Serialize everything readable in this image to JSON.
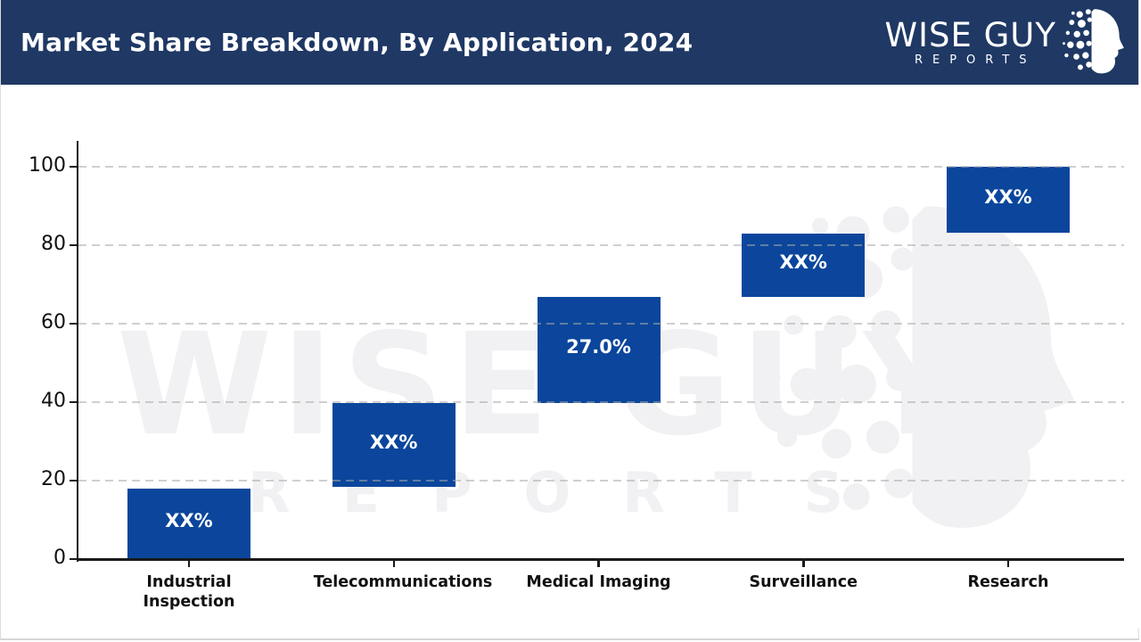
{
  "header": {
    "title": "Market Share Breakdown, By Application, 2024",
    "logo_line1": "WISE GUY",
    "logo_line2": "REPORTS",
    "bg_color": "#1f3864"
  },
  "watermark": {
    "line1": "WISE GUY",
    "line2": "REPORTS"
  },
  "chart_data": {
    "type": "bar",
    "variant": "waterfall",
    "title": "Market Share Breakdown, By Application, 2024",
    "categories": [
      "Industrial\nInspection",
      "Telecommunications",
      "Medical Imaging",
      "Surveillance",
      "Research"
    ],
    "segments": [
      {
        "category": "Industrial\nInspection",
        "start": 0,
        "end": 18,
        "label": "XX%"
      },
      {
        "category": "Telecommunications",
        "start": 18.3,
        "end": 39.8,
        "label": "XX%"
      },
      {
        "category": "Medical Imaging",
        "start": 39.8,
        "end": 66.8,
        "label": "27.0%"
      },
      {
        "category": "Surveillance",
        "start": 66.9,
        "end": 83.0,
        "label": "XX%"
      },
      {
        "category": "Research",
        "start": 83.2,
        "end": 100,
        "label": "XX%"
      }
    ],
    "yticks": [
      0,
      20,
      40,
      60,
      80,
      100
    ],
    "ylim": [
      0,
      106
    ],
    "grid": "horizontal-dashed",
    "legend": "none",
    "bar_color": "#0b469c",
    "bar_label_color": "#ffffff",
    "axis_color": "#1a1a1a"
  }
}
